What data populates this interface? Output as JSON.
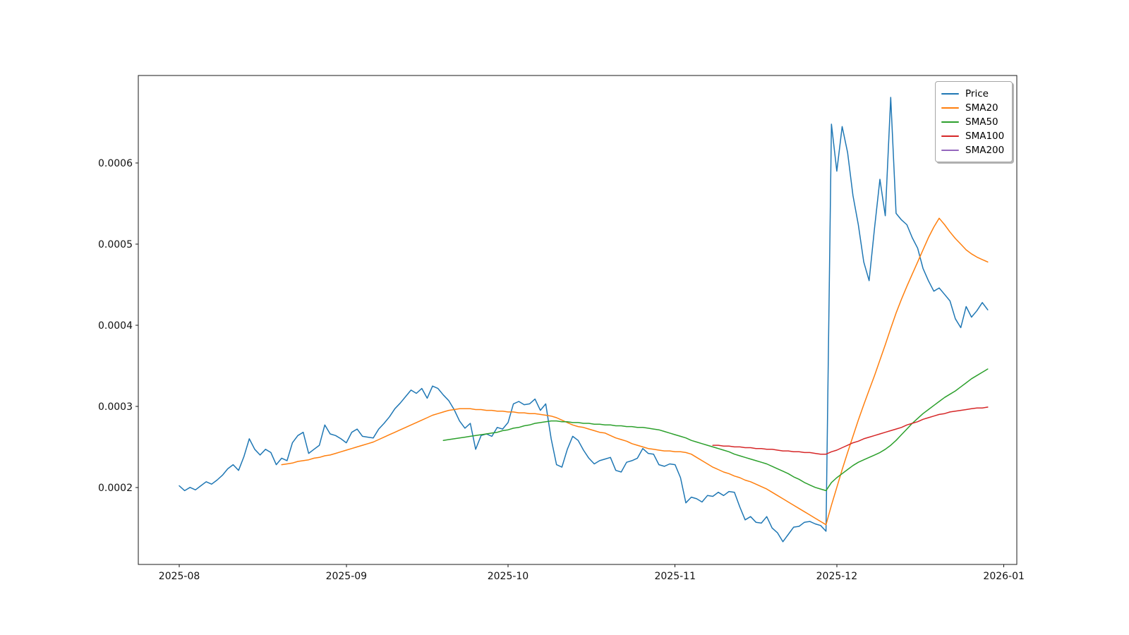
{
  "figure": {
    "background_color": "#ffffff",
    "spine_color": "#1a1a1a",
    "tick_label_color": "#111111"
  },
  "legend": {
    "position": "upper right",
    "items": [
      {
        "label": "Price",
        "color": "#1f77b4"
      },
      {
        "label": "SMA20",
        "color": "#ff7f0e"
      },
      {
        "label": "SMA50",
        "color": "#2ca02c"
      },
      {
        "label": "SMA100",
        "color": "#d62728"
      },
      {
        "label": "SMA200",
        "color": "#9467bd"
      }
    ]
  },
  "chart_data": {
    "type": "line",
    "title": "",
    "xlabel": "",
    "ylabel": "",
    "grid": false,
    "x_unit": "days since 2025-08-01 (daily series, ends 2025-12-29)",
    "value_scale": 1e-06,
    "xlim_days": [
      -7.6,
      155.4
    ],
    "ylim": [
      0.000105,
      0.000708
    ],
    "x_ticks": [
      {
        "day": 0,
        "label": "2025-08"
      },
      {
        "day": 31,
        "label": "2025-09"
      },
      {
        "day": 61,
        "label": "2025-10"
      },
      {
        "day": 92,
        "label": "2025-11"
      },
      {
        "day": 122,
        "label": "2025-12"
      },
      {
        "day": 153,
        "label": "2026-01"
      }
    ],
    "y_ticks": [
      {
        "value": 0.0002,
        "label": "0.0002"
      },
      {
        "value": 0.0003,
        "label": "0.0003"
      },
      {
        "value": 0.0004,
        "label": "0.0004"
      },
      {
        "value": 0.0005,
        "label": "0.0005"
      },
      {
        "value": 0.0006,
        "label": "0.0006"
      }
    ],
    "series": [
      {
        "name": "Price",
        "color": "#1f77b4",
        "line_width": 1.5,
        "start_day": 0,
        "values_micro": [
          202,
          196,
          200,
          197,
          202,
          207,
          204,
          209,
          215,
          223,
          228,
          221,
          238,
          260,
          247,
          240,
          247,
          243,
          228,
          236,
          233,
          255,
          264,
          268,
          242,
          247,
          252,
          277,
          266,
          264,
          260,
          255,
          268,
          272,
          263,
          262,
          261,
          272,
          279,
          287,
          297,
          304,
          312,
          320,
          316,
          322,
          310,
          325,
          322,
          314,
          307,
          296,
          282,
          273,
          279,
          247,
          264,
          266,
          263,
          274,
          272,
          280,
          303,
          306,
          302,
          303,
          309,
          295,
          303,
          260,
          228,
          225,
          247,
          263,
          258,
          246,
          236,
          229,
          233,
          235,
          237,
          221,
          219,
          231,
          233,
          236,
          248,
          242,
          241,
          228,
          226,
          229,
          228,
          212,
          181,
          188,
          186,
          182,
          190,
          189,
          194,
          190,
          195,
          194,
          176,
          160,
          164,
          157,
          156,
          164,
          150,
          144,
          133,
          142,
          151,
          152,
          157,
          158,
          155,
          153,
          146,
          648,
          590,
          645,
          613,
          560,
          524,
          478,
          455,
          520,
          580,
          535,
          681,
          538,
          530,
          524,
          508,
          495,
          470,
          455,
          442,
          446,
          438,
          430,
          408,
          397,
          423,
          410,
          418,
          428,
          419
        ]
      },
      {
        "name": "SMA20",
        "color": "#ff7f0e",
        "line_width": 1.5,
        "start_day": 19,
        "values_micro": [
          228,
          229,
          230,
          232,
          233,
          234,
          236,
          237,
          239,
          240,
          242,
          244,
          246,
          248,
          250,
          252,
          254,
          256,
          259,
          262,
          265,
          268,
          271,
          274,
          277,
          280,
          283,
          286,
          289,
          291,
          293,
          295,
          296,
          297,
          297,
          297,
          296,
          296,
          295,
          295,
          294,
          294,
          293,
          293,
          292,
          292,
          291,
          291,
          290,
          289,
          288,
          286,
          283,
          280,
          277,
          275,
          274,
          272,
          270,
          268,
          267,
          264,
          261,
          259,
          257,
          254,
          252,
          250,
          248,
          247,
          246,
          245,
          245,
          244,
          244,
          243,
          241,
          237,
          233,
          229,
          225,
          222,
          219,
          217,
          214,
          212,
          209,
          207,
          204,
          201,
          198,
          194,
          190,
          186,
          182,
          178,
          174,
          170,
          166,
          162,
          158,
          154,
          178,
          200,
          222,
          243,
          263,
          283,
          302,
          320,
          338,
          357,
          376,
          396,
          415,
          432,
          448,
          463,
          478,
          493,
          508,
          521,
          532,
          524,
          515,
          507,
          500,
          493,
          488,
          484,
          481,
          478
        ]
      },
      {
        "name": "SMA50",
        "color": "#2ca02c",
        "line_width": 1.5,
        "start_day": 49,
        "values_micro": [
          258,
          259,
          260,
          261,
          262,
          263,
          264,
          265,
          266,
          267,
          268,
          270,
          271,
          273,
          274,
          276,
          277,
          279,
          280,
          281,
          282,
          282,
          281,
          281,
          280,
          280,
          279,
          279,
          278,
          278,
          277,
          277,
          276,
          276,
          275,
          275,
          274,
          274,
          273,
          272,
          271,
          269,
          267,
          265,
          263,
          261,
          258,
          256,
          254,
          252,
          250,
          248,
          246,
          244,
          241,
          239,
          237,
          235,
          233,
          231,
          229,
          226,
          223,
          220,
          217,
          213,
          210,
          206,
          203,
          200,
          198,
          196,
          206,
          212,
          217,
          222,
          227,
          231,
          234,
          237,
          240,
          243,
          247,
          252,
          258,
          265,
          272,
          279,
          285,
          291,
          296,
          301,
          306,
          311,
          315,
          319,
          324,
          329,
          334,
          338,
          342,
          346
        ]
      },
      {
        "name": "SMA100",
        "color": "#d62728",
        "line_width": 1.5,
        "start_day": 99,
        "values_micro": [
          252,
          252,
          251,
          251,
          250,
          250,
          249,
          249,
          248,
          248,
          247,
          247,
          246,
          245,
          245,
          244,
          244,
          243,
          243,
          242,
          241,
          241,
          244,
          246,
          249,
          252,
          255,
          257,
          260,
          262,
          264,
          266,
          268,
          270,
          272,
          274,
          277,
          279,
          281,
          284,
          286,
          288,
          290,
          291,
          293,
          294,
          295,
          296,
          297,
          298,
          298,
          299
        ]
      },
      {
        "name": "SMA200",
        "color": "#9467bd",
        "line_width": 1.5,
        "start_day": 199,
        "values_micro": []
      }
    ]
  }
}
